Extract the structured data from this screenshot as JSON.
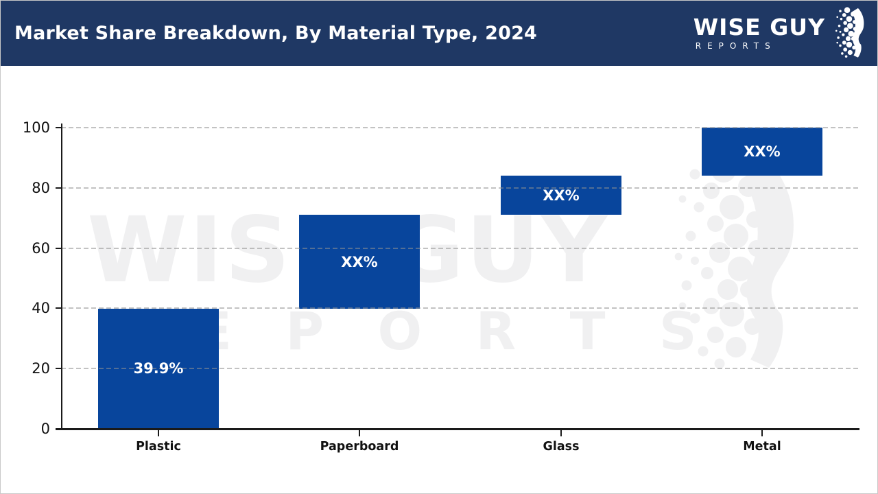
{
  "header": {
    "title": "Market Share Breakdown, By Material Type, 2024",
    "logo": {
      "name": "WISE GUY",
      "sub": "REPORTS"
    }
  },
  "watermark": {
    "line1": "WISE GUY",
    "line2": "REPORTS"
  },
  "colors": {
    "header_bg": "#1f3864",
    "bar": "#08459c",
    "bar_label": "#ffffff",
    "axis": "#1a1a1a",
    "tick_label": "#111111",
    "watermark": "#f0f0f1"
  },
  "chart_data": {
    "type": "bar",
    "subtype": "waterfall",
    "title": "Market Share Breakdown, By Material Type, 2024",
    "categories": [
      "Plastic",
      "Paperboard",
      "Glass",
      "Metal"
    ],
    "series": [
      {
        "name": "Market Share (%)",
        "starts": [
          0,
          39.9,
          71,
          84
        ],
        "ends": [
          39.9,
          71,
          84,
          100
        ]
      }
    ],
    "bar_labels": [
      "39.9%",
      "XX%",
      "XX%",
      "XX%"
    ],
    "yticks": [
      0,
      20,
      40,
      60,
      80,
      100
    ],
    "ylim": [
      0,
      101.5
    ],
    "xlabel": "",
    "ylabel": "",
    "grid": "horizontal-dashed-overlaid",
    "legend": "none"
  }
}
